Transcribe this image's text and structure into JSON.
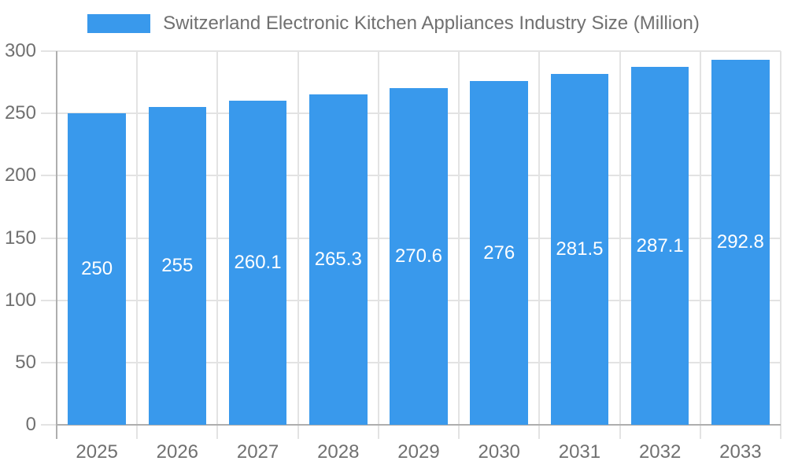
{
  "chart_data": {
    "type": "bar",
    "title": "Switzerland Electronic Kitchen Appliances Industry Size (Million)",
    "categories": [
      "2025",
      "2026",
      "2027",
      "2028",
      "2029",
      "2030",
      "2031",
      "2032",
      "2033"
    ],
    "values": [
      250,
      255,
      260.1,
      265.3,
      270.6,
      276,
      281.5,
      287.1,
      292.8
    ],
    "value_labels": [
      "250",
      "255",
      "260.1",
      "265.3",
      "270.6",
      "276",
      "281.5",
      "287.1",
      "292.8"
    ],
    "xlabel": "",
    "ylabel": "",
    "ylim": [
      0,
      300
    ],
    "yticks": [
      0,
      50,
      100,
      150,
      200,
      250,
      300
    ],
    "grid": true,
    "legend_position": "top",
    "colors": {
      "bar": "#3999EC",
      "grid": "#E3E3E3",
      "axis_line": "#AEAEAE",
      "text": "#707070",
      "value_text": "#FFFFFF",
      "background": "#FFFFFF"
    }
  }
}
